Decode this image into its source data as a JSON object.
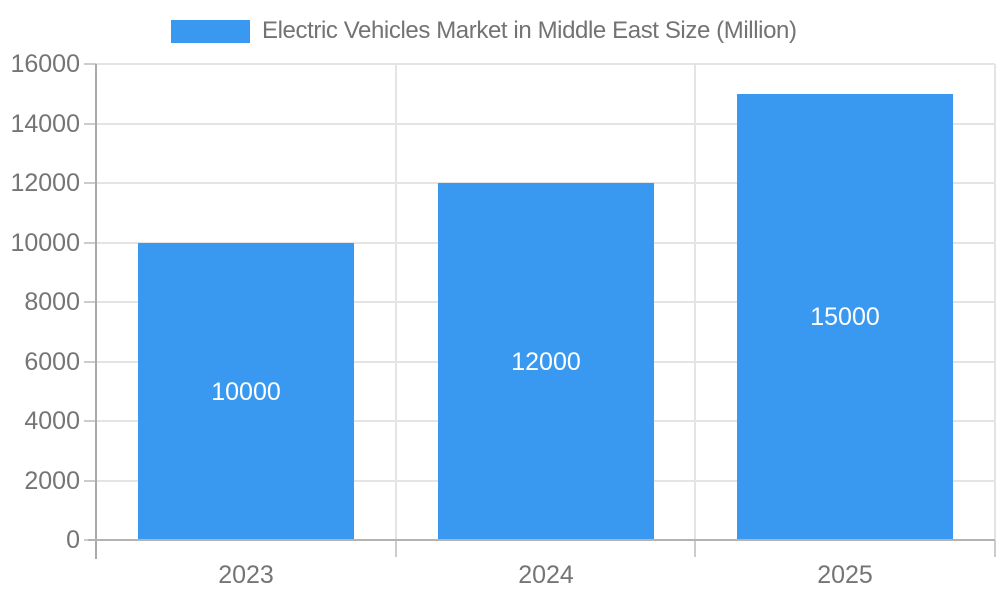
{
  "chart_data": {
    "type": "bar",
    "title": "Electric Vehicles Market in Middle East Size (Million)",
    "categories": [
      "2023",
      "2024",
      "2025"
    ],
    "values": [
      10000,
      12000,
      15000
    ],
    "bar_labels": [
      "10000",
      "12000",
      "15000"
    ],
    "xlabel": "",
    "ylabel": "",
    "ylim": [
      0,
      16000
    ],
    "yticks": [
      0,
      2000,
      4000,
      6000,
      8000,
      10000,
      12000,
      14000,
      16000
    ],
    "grid": true,
    "legend_position": "top",
    "data_label_position": "inside-center"
  },
  "colors": {
    "bar": "#3999F0",
    "grid": "#e4e4e4",
    "tick": "#cccccc",
    "x_axis": "#b3b3b3",
    "y_axis": "#aaaaaa",
    "tick_label": "#757575",
    "title_text": "#737373",
    "bar_label": "#ffffff",
    "background": "#ffffff"
  }
}
